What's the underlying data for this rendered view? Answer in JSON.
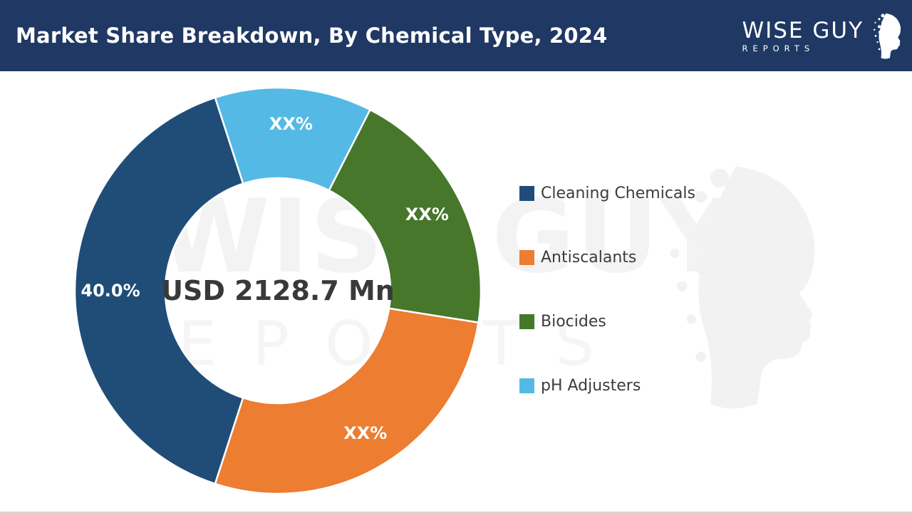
{
  "header": {
    "title": "Market Share Breakdown, By Chemical Type, 2024",
    "bg_color": "#1F3864",
    "logo": {
      "line1": "WISE GUY",
      "line2": "REPORTS"
    }
  },
  "center_label": "USD 2128.7 Mn",
  "watermark": {
    "line1": "WISE GUY",
    "line2": "REPORTS"
  },
  "chart_data": {
    "type": "pie",
    "subtype": "donut",
    "title": "Market Share Breakdown, By Chemical Type, 2024",
    "center_total": "USD 2128.7 Mn",
    "start_bearing_deg": 342,
    "direction": "counterclockwise",
    "legend_position": "right",
    "categories": [
      "Cleaning Chemicals",
      "Antiscalants",
      "Biocides",
      "pH Adjusters"
    ],
    "values": [
      40.0,
      27.5,
      20.0,
      12.5
    ],
    "segments": [
      {
        "label": "Cleaning Chemicals",
        "value": 40.0,
        "display_value": "40.0%",
        "color": "#1F4D78"
      },
      {
        "label": "Antiscalants",
        "value": 27.5,
        "display_value": "XX%",
        "color": "#ED7D31"
      },
      {
        "label": "Biocides",
        "value": 20.0,
        "display_value": "XX%",
        "color": "#46772B"
      },
      {
        "label": "pH Adjusters",
        "value": 12.5,
        "display_value": "XX%",
        "color": "#55B9E5"
      }
    ]
  }
}
